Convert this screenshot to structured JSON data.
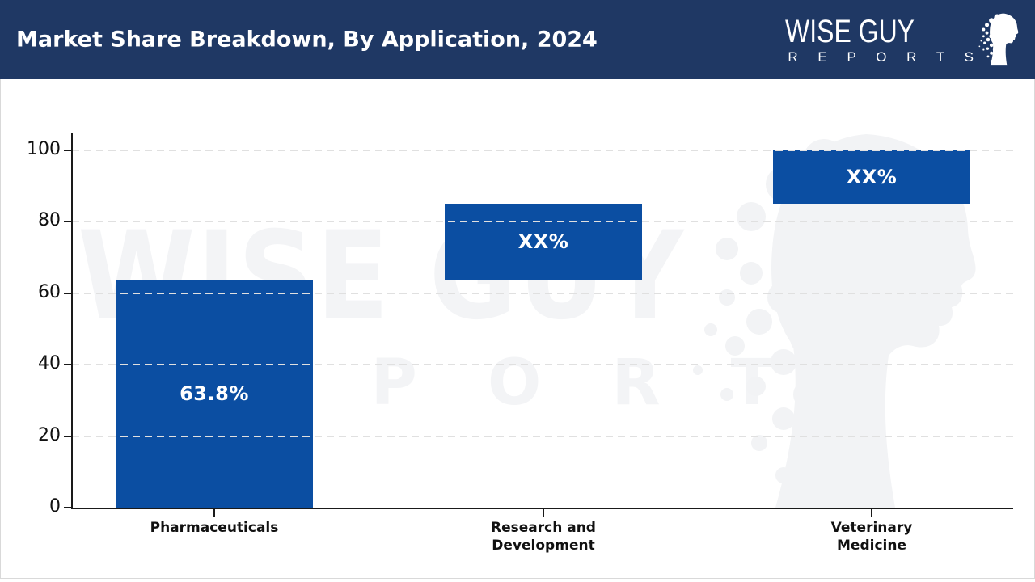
{
  "header": {
    "title": "Market Share Breakdown, By Application, 2024",
    "logo": {
      "name_line": "WISE GUY",
      "reports_line": "R E P O R T S"
    }
  },
  "watermark": {
    "line1": "WISE GUY",
    "line2": "R E P O R T S"
  },
  "chart_data": {
    "type": "bar",
    "variant": "stacked-waterfall",
    "title": "Market Share Breakdown, By Application, 2024",
    "categories": [
      "Pharmaceuticals",
      "Research and Development",
      "Veterinary Medicine"
    ],
    "category_label_lines": [
      [
        "Pharmaceuticals"
      ],
      [
        "Research and",
        "Development"
      ],
      [
        "Veterinary",
        "Medicine"
      ]
    ],
    "segments": [
      {
        "category": "Pharmaceuticals",
        "start": 0,
        "end": 63.8,
        "label": "63.8%"
      },
      {
        "category": "Research and Development",
        "start": 63.8,
        "end": 85,
        "label": "XX%"
      },
      {
        "category": "Veterinary Medicine",
        "start": 85,
        "end": 100,
        "label": "XX%"
      }
    ],
    "ylim": [
      0,
      100
    ],
    "yticks": [
      0,
      20,
      40,
      60,
      80,
      100
    ],
    "xlabel": "",
    "ylabel": "",
    "grid": "horizontal-dashed",
    "legend": "none",
    "colors": {
      "bar": "#0b4ea2",
      "bar_label": "#ffffff",
      "axis": "#1a1a1a",
      "gridline": "#e0e0e0",
      "header_bg": "#1f3864",
      "watermark": "#f2f3f5"
    }
  }
}
